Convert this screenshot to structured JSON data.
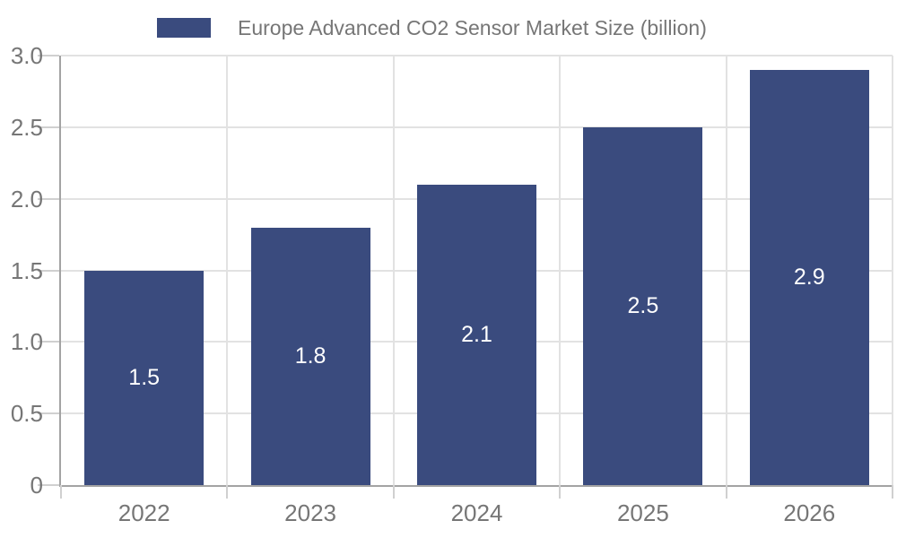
{
  "chart_data": {
    "type": "bar",
    "title": "Europe Advanced CO2 Sensor Market Size (billion)",
    "categories": [
      "2022",
      "2023",
      "2024",
      "2025",
      "2026"
    ],
    "values": [
      1.5,
      1.8,
      2.1,
      2.5,
      2.9
    ],
    "bar_labels": [
      "1.5",
      "1.8",
      "2.1",
      "2.5",
      "2.9"
    ],
    "xlabel": "",
    "ylabel": "",
    "ylim": [
      0,
      3.0
    ],
    "yticks": [
      0,
      0.5,
      1.0,
      1.5,
      2.0,
      2.5,
      3.0
    ],
    "ytick_labels": [
      "0",
      "0.5",
      "1.0",
      "1.5",
      "2.0",
      "2.5",
      "3.0"
    ],
    "grid": true,
    "legend_position": "top-center",
    "colors": {
      "bar": "#3A4B7E",
      "grid": "#E2E2E2",
      "spine": "#A3A3A3",
      "tick": "#D0D0D0",
      "tick_label": "#767676",
      "value_label": "#FFFFFF",
      "background": "#FFFFFF"
    }
  }
}
